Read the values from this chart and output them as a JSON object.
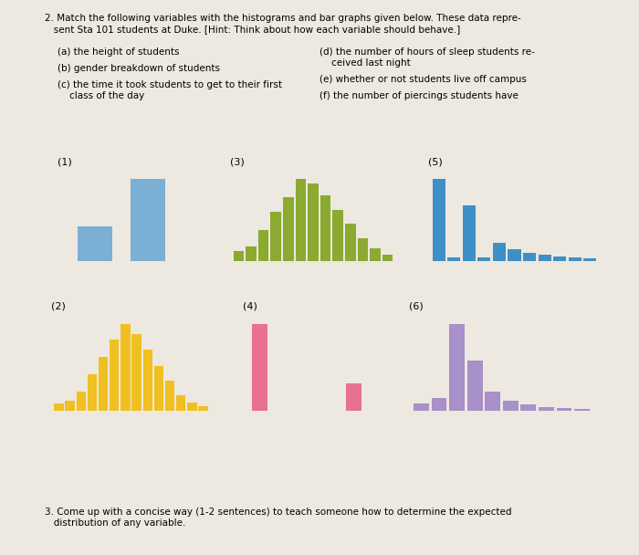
{
  "background_color": "#ede8e0",
  "title_line1": "2. Match the following variables with the histograms and bar graphs given below. These data repre-",
  "title_line2": "   sent Sta 101 students at Duke. [Hint: Think about how each variable should behave.]",
  "label_a": "(a) the height of students",
  "label_b": "(b) gender breakdown of students",
  "label_c1": "(c) the time it took students to get to their first",
  "label_c2": "    class of the day",
  "label_d1": "(d) the number of hours of sleep students re-",
  "label_d2": "    ceived last night",
  "label_e": "(e) whether or not students live off campus",
  "label_f": "(f) the number of piercings students have",
  "chart1": {
    "label": "(1)",
    "color": "#7bafd4",
    "bars": [
      0.42,
      1.0
    ],
    "bar_width": 0.65
  },
  "chart2": {
    "label": "(2)",
    "color": "#f0c020",
    "bars": [
      0.08,
      0.12,
      0.22,
      0.42,
      0.62,
      0.82,
      1.0,
      0.88,
      0.7,
      0.52,
      0.35,
      0.18,
      0.09,
      0.05
    ],
    "bar_width": 0.85
  },
  "chart3": {
    "label": "(3)",
    "color": "#8aaa30",
    "bars": [
      0.12,
      0.18,
      0.38,
      0.6,
      0.78,
      1.0,
      0.95,
      0.8,
      0.62,
      0.45,
      0.28,
      0.15,
      0.08
    ],
    "bar_width": 0.85
  },
  "chart4": {
    "label": "(4)",
    "color": "#e87090",
    "bars": [
      1.0,
      0.0,
      0.0,
      0.0,
      0.32
    ],
    "bar_width": 0.65
  },
  "chart5": {
    "label": "(5)",
    "color": "#3d8fc5",
    "bars": [
      1.0,
      0.04,
      0.68,
      0.04,
      0.22,
      0.14,
      0.1,
      0.07,
      0.05,
      0.04,
      0.03
    ],
    "bar_width": 0.85
  },
  "chart6": {
    "label": "(6)",
    "color": "#a890c8",
    "bars": [
      0.08,
      0.15,
      1.0,
      0.58,
      0.22,
      0.12,
      0.07,
      0.04,
      0.03,
      0.02
    ],
    "bar_width": 0.85
  },
  "bottom_line1": "3. Come up with a concise way (1-2 sentences) to teach someone how to determine the expected",
  "bottom_line2": "   distribution of any variable."
}
